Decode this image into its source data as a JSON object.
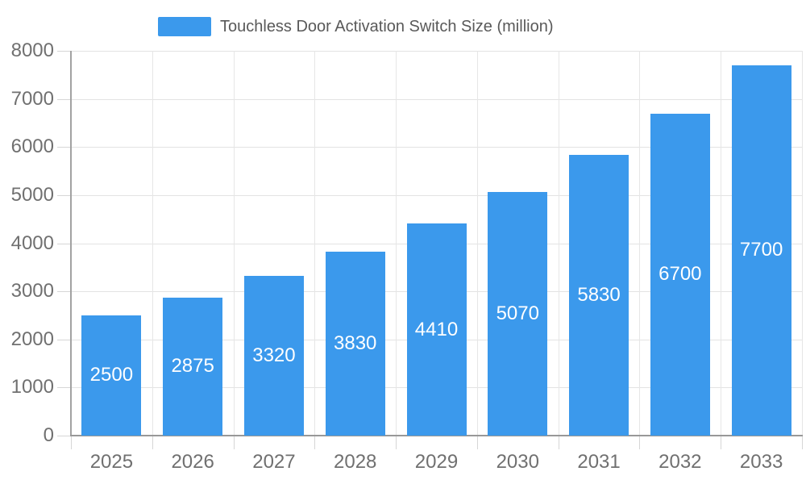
{
  "chart_data": {
    "type": "bar",
    "title": "",
    "legend": "Touchless Door Activation Switch Size (million)",
    "categories": [
      "2025",
      "2026",
      "2027",
      "2028",
      "2029",
      "2030",
      "2031",
      "2032",
      "2033"
    ],
    "values": [
      2500,
      2875,
      3320,
      3830,
      4410,
      5070,
      5830,
      6700,
      7700
    ],
    "value_labels": [
      "2500",
      "2875",
      "3320",
      "3830",
      "4410",
      "5070",
      "5830",
      "6700",
      "7700"
    ],
    "xlabel": "",
    "ylabel": "",
    "ylim": [
      0,
      8000
    ],
    "ytick_step": 1000,
    "ytick_labels": [
      "0",
      "1000",
      "2000",
      "3000",
      "4000",
      "5000",
      "6000",
      "7000",
      "8000"
    ],
    "grid": true,
    "legend_position": "top-center",
    "colors": {
      "bar": "#3b99ec",
      "bar_label": "#ffffff",
      "axis_label": "#707070",
      "legend_text": "#595959",
      "background": "#ffffff"
    }
  }
}
